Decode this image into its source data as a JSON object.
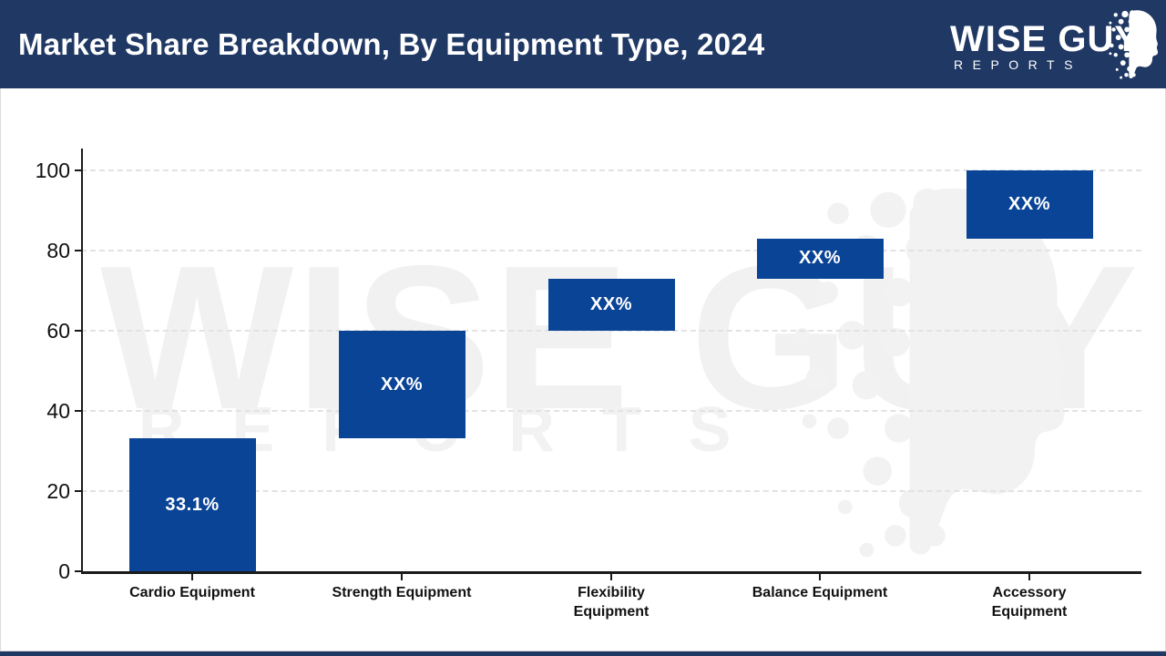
{
  "header": {
    "title": "Market Share Breakdown, By Equipment Type, 2024",
    "logo": {
      "line1": "WISE GUY",
      "line2": "REPORTS"
    }
  },
  "watermark": {
    "line1": "WISE GUY",
    "line2": "REPORTS"
  },
  "colors": {
    "header_bg": "#203864",
    "bar_blue": "#0a4496",
    "bar_label_text": "#ffffff",
    "gridline": "#e2e2e2",
    "axis": "#1a1a1a",
    "tick_text": "#111111",
    "watermark_gray": "#f1f1f1"
  },
  "chart_data": {
    "type": "bar",
    "subtype": "waterfall-stacked-segments",
    "title": "Market Share Breakdown, By Equipment Type, 2024",
    "categories": [
      "Cardio Equipment",
      "Strength Equipment",
      "Flexibility Equipment",
      "Balance Equipment",
      "Accessory Equipment"
    ],
    "category_lines": [
      [
        "Cardio Equipment"
      ],
      [
        "Strength Equipment"
      ],
      [
        "Flexibility",
        "Equipment"
      ],
      [
        "Balance Equipment"
      ],
      [
        "Accessory",
        "Equipment"
      ]
    ],
    "segments": [
      {
        "category": "Cardio Equipment",
        "start": 0,
        "end": 33.1,
        "size": 33.1,
        "label": "33.1%"
      },
      {
        "category": "Strength Equipment",
        "start": 33.1,
        "end": 60,
        "size": 26.9,
        "label": "XX%"
      },
      {
        "category": "Flexibility Equipment",
        "start": 60,
        "end": 73,
        "size": 13,
        "label": "XX%"
      },
      {
        "category": "Balance Equipment",
        "start": 73,
        "end": 83,
        "size": 10,
        "label": "XX%"
      },
      {
        "category": "Accessory Equipment",
        "start": 83,
        "end": 100,
        "size": 17,
        "label": "XX%"
      }
    ],
    "xlabel": "",
    "ylabel": "",
    "ylim": [
      0,
      100
    ],
    "yticks": [
      0,
      20,
      40,
      60,
      80,
      100
    ],
    "grid": "horizontal-dashed",
    "legend": "none",
    "bar_color": "#0a4496",
    "label_color": "#ffffff"
  }
}
